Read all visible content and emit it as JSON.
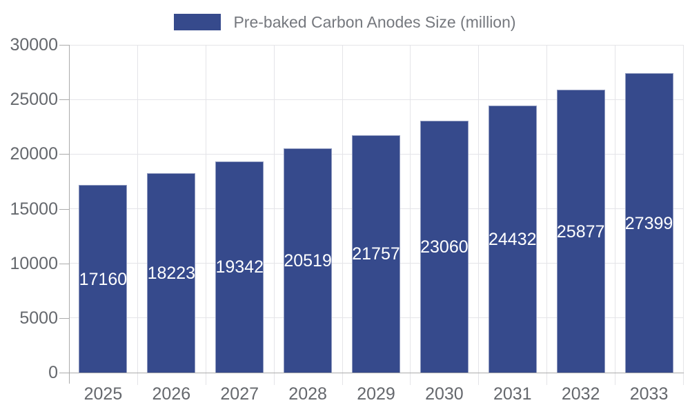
{
  "chart_data": {
    "type": "bar",
    "title": "",
    "legend_position": "top-center",
    "categories": [
      "2025",
      "2026",
      "2027",
      "2028",
      "2029",
      "2030",
      "2031",
      "2032",
      "2033"
    ],
    "series": [
      {
        "name": "Pre-baked Carbon Anodes Size (million)",
        "values": [
          17160,
          18223,
          19342,
          20519,
          21757,
          23060,
          24432,
          25877,
          27399
        ]
      }
    ],
    "xlabel": "",
    "ylabel": "",
    "ylim": [
      0,
      30000
    ],
    "yticks": [
      0,
      5000,
      10000,
      15000,
      20000,
      25000,
      30000
    ],
    "grid": true,
    "value_labels_position": "inside-middle",
    "colors": {
      "bar": "#364A8C",
      "axis": "#ABABAB",
      "grid": "#E4E4E8",
      "tick_text": "#65686D",
      "legend_text": "#75787E",
      "value_label_text": "#FFFFFF",
      "background": "#FFFFFF"
    }
  }
}
